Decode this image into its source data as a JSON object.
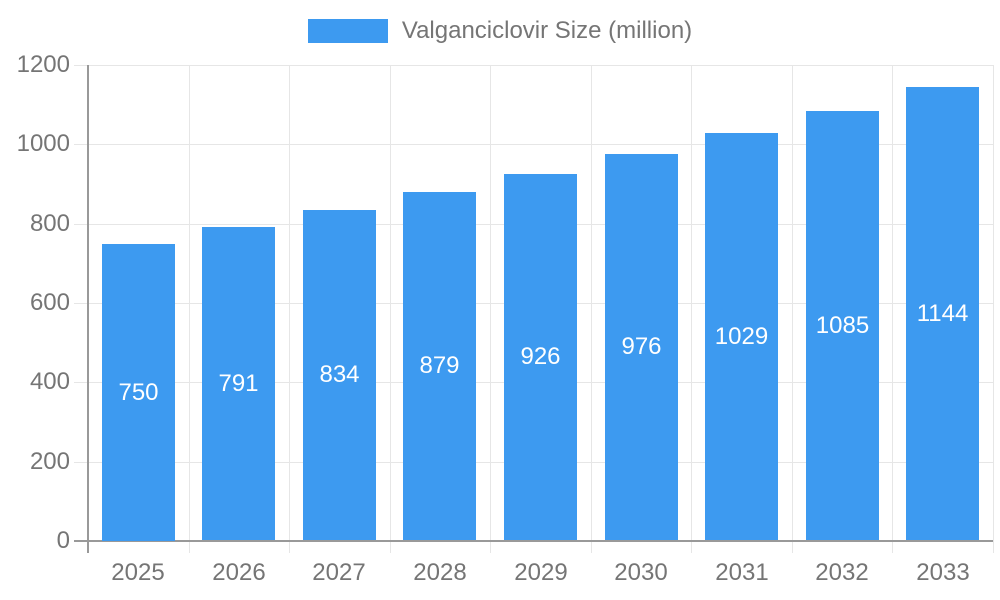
{
  "chart": {
    "legend": {
      "label": "Valganciclovir Size (million)"
    },
    "colors": {
      "bar": "#3D9AF0",
      "grid": "#E6E6E6",
      "axis": "#999999",
      "tick_text": "#757575",
      "bar_label_text": "#FFFFFF"
    }
  },
  "chart_data": {
    "type": "bar",
    "title": "",
    "xlabel": "",
    "ylabel": "",
    "categories": [
      "2025",
      "2026",
      "2027",
      "2028",
      "2029",
      "2030",
      "2031",
      "2032",
      "2033"
    ],
    "series": [
      {
        "name": "Valganciclovir Size (million)",
        "values": [
          750,
          791,
          834,
          879,
          926,
          976,
          1029,
          1085,
          1144
        ]
      }
    ],
    "bar_labels": [
      750,
      791,
      834,
      879,
      926,
      976,
      1029,
      1085,
      1144
    ],
    "ylim": [
      0,
      1200
    ],
    "yticks": [
      0,
      200,
      400,
      600,
      800,
      1000,
      1200
    ],
    "grid": true,
    "legend_position": "top"
  }
}
